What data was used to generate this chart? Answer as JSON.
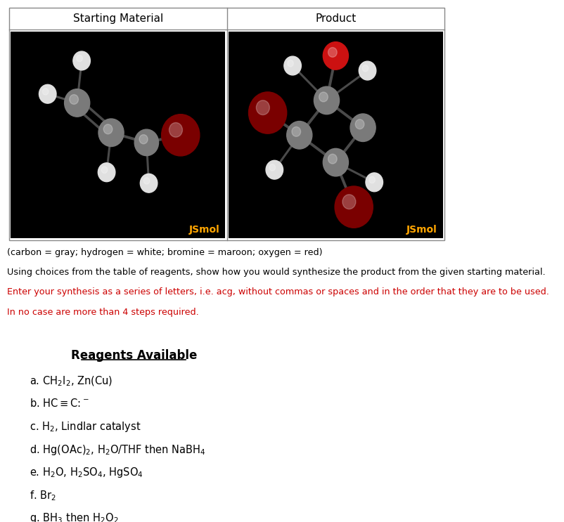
{
  "title_left": "Starting Material",
  "title_right": "Product",
  "jsmol_label": "JSmol",
  "jsmol_color": "#FFA500",
  "box_bg": "#000000",
  "box_border": "#888888",
  "description_line1": "(carbon = gray; hydrogen = white; bromine = maroon; oxygen = red)",
  "description_line2": "Using choices from the table of reagents, show how you would synthesize the product from the given starting material.",
  "description_line3_red": "Enter your synthesis as a series of letters, i.e. acg, without commas or spaces and in the order that they are to be used.",
  "description_line4_red": "In no case are more than 4 steps required.",
  "reagents_title": "Reagents Available",
  "figsize": [
    8.03,
    7.43
  ],
  "dpi": 100,
  "background_color": "#ffffff",
  "text_color": "#000000",
  "red_color": "#cc0000"
}
